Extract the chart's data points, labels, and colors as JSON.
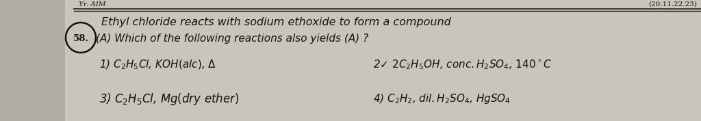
{
  "bg_color": "#c8c4be",
  "left_bg": "#b0aca6",
  "text_color": "#1a1209",
  "header_left": "Yr. AIM",
  "header_right": "(20.11.22.23)",
  "question_number": "58.",
  "title_line1": "Ethyl chloride reacts with sodium ethoxide to form a compound",
  "title_line2": "(A) Which of the following reactions also yields (A) ?",
  "opt1": "1) $C_2H_5Cl$, $KOH(alc)$, $\\Delta$",
  "opt2": "2$\\checkmark$ $2C_2H_5OH$, $conc.H_2SO_4$, $140^\\circ C$",
  "opt3": "3) $C_2H_5Cl$, $Mg(dry\\ ether)$",
  "opt4": "4) $C_2H_2$, $dil.H_2SO_4$, $HgSO_4$",
  "font_size_header": 7.5,
  "font_size_title": 11.5,
  "font_size_sub": 11,
  "font_size_opt": 11
}
